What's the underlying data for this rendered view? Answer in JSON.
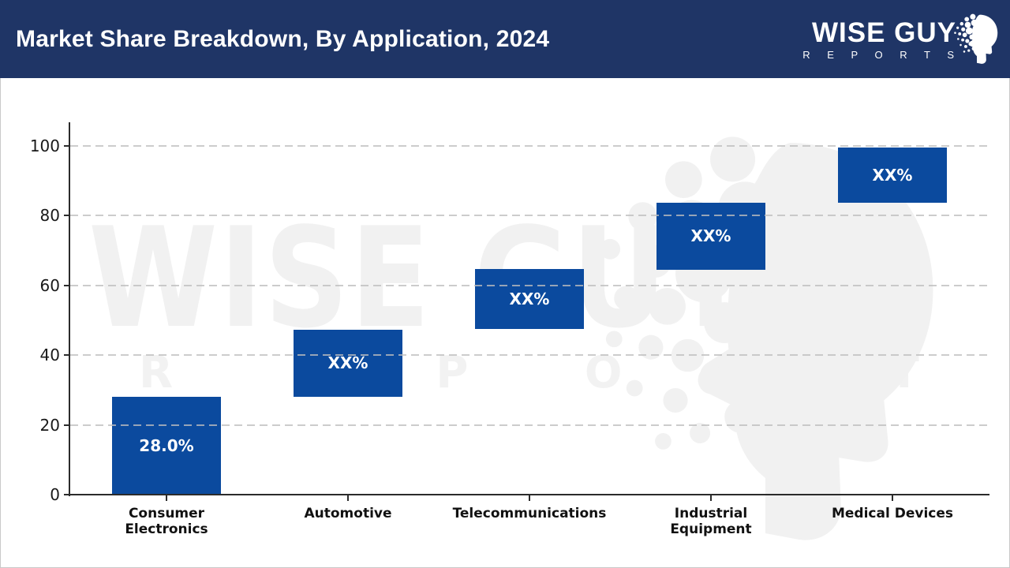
{
  "header": {
    "title": "Market Share Breakdown, By Application, 2024",
    "logo": {
      "primary": "WISE GUY",
      "secondary": "R E P O R T S"
    }
  },
  "watermark": {
    "primary": "WISE GUY",
    "secondary": "R E P O R T S"
  },
  "icons": {
    "logo_face": "wiseguy-head-dots",
    "watermark_face": "wiseguy-head-dots"
  },
  "colors": {
    "header_bg": "#1f3566",
    "bar": "#0b4a9e",
    "bar_label": "#ffffff",
    "axis": "#2b2b2b",
    "grid": "#bebebe",
    "watermark": "#f1f1f1"
  },
  "chart_data": {
    "type": "bar",
    "subtype": "waterfall",
    "title": "Market Share Breakdown, By Application, 2024",
    "categories": [
      "Consumer Electronics",
      "Automotive",
      "Telecommunications",
      "Industrial Equipment",
      "Medical Devices"
    ],
    "category_lines": [
      [
        "Consumer",
        "Electronics"
      ],
      [
        "Automotive"
      ],
      [
        "Telecommunications"
      ],
      [
        "Industrial",
        "Equipment"
      ],
      [
        "Medical Devices"
      ]
    ],
    "series": [
      {
        "category": "Consumer Electronics",
        "start": 0,
        "end": 28.0,
        "label": "28.0%"
      },
      {
        "category": "Automotive",
        "start": 28.0,
        "end": 47.4,
        "label": "XX%"
      },
      {
        "category": "Telecommunications",
        "start": 47.5,
        "end": 64.7,
        "label": "XX%"
      },
      {
        "category": "Industrial Equipment",
        "start": 64.5,
        "end": 83.8,
        "label": "XX%"
      },
      {
        "category": "Medical Devices",
        "start": 83.8,
        "end": 99.6,
        "label": "XX%"
      }
    ],
    "xlabel": "",
    "ylabel": "",
    "yticks": [
      0,
      20,
      40,
      60,
      80,
      100
    ],
    "ylim": [
      0,
      106.8
    ],
    "grid": "dashed-horizontal",
    "grid_above_bars": true,
    "legend": "none"
  }
}
